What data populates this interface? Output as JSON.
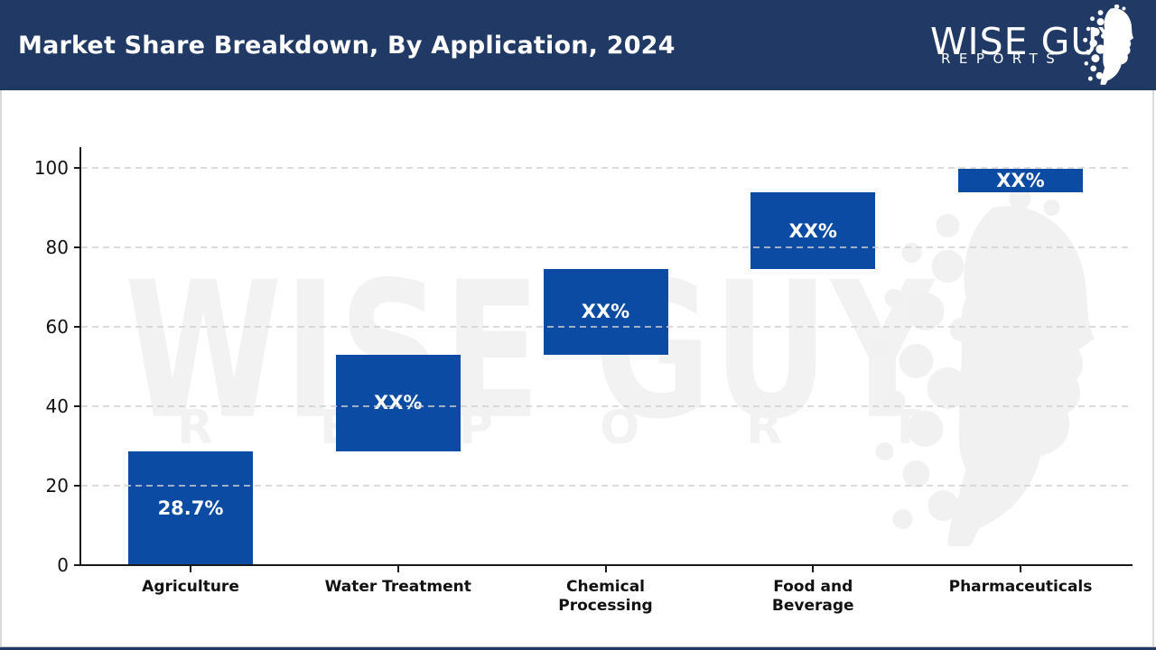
{
  "header": {
    "title": "Market Share Breakdown, By Application, 2024",
    "logo": {
      "line1": "WISE GUY",
      "line2": "REPORTS",
      "icon": "dotted-head-profile-icon"
    }
  },
  "watermark": {
    "line1": "WISE GUY",
    "line2": "REPORTS",
    "icon": "dotted-head-profile-icon"
  },
  "chart_data": {
    "type": "bar",
    "subtype": "waterfall",
    "title": "Market Share Breakdown, By Application, 2024",
    "categories": [
      "Agriculture",
      "Water Treatment",
      "Chemical Processing",
      "Food and Beverage",
      "Pharmaceuticals"
    ],
    "series": [
      {
        "name": "Market Share (%)",
        "starts": [
          0,
          28.7,
          53.0,
          74.5,
          93.8
        ],
        "ends": [
          28.7,
          53.0,
          74.5,
          93.8,
          99.8
        ]
      }
    ],
    "bar_labels": [
      "28.7%",
      "XX%",
      "XX%",
      "XX%",
      "XX%"
    ],
    "xlabel": "",
    "ylabel": "",
    "yticks": [
      0,
      20,
      40,
      60,
      80,
      100
    ],
    "ylim": [
      0,
      105
    ],
    "grid": "dashed-horizontal",
    "legend": "none",
    "bar_color": "#0c4ba3",
    "label_color": "#ffffff"
  }
}
